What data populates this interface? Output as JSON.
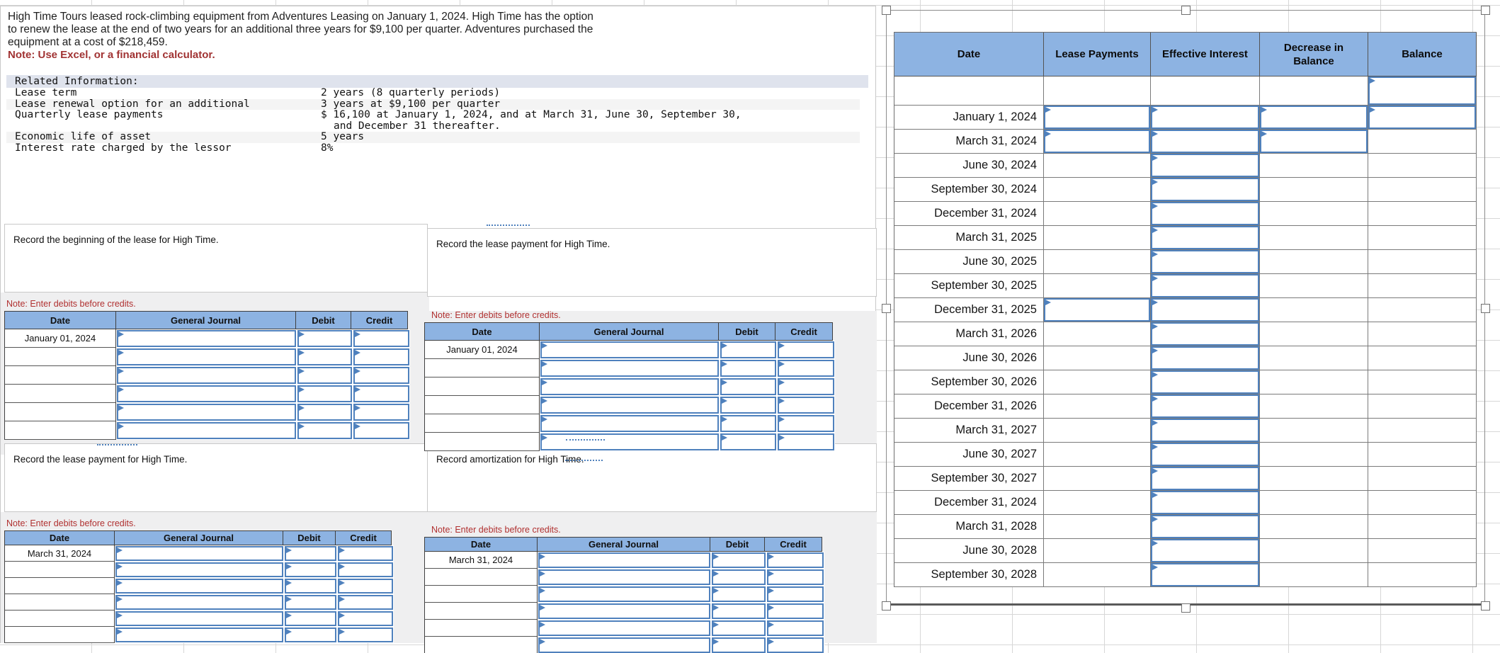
{
  "problem": {
    "lines": [
      "High Time Tours leased rock-climbing equipment from Adventures Leasing on January 1, 2024. High Time has the option",
      "to renew the lease at the end of two years for an additional three years for $9,100 per quarter. Adventures purchased the",
      "equipment at a cost of $218,459."
    ],
    "note": "Note: Use Excel, or a financial calculator."
  },
  "related_information": {
    "title": "Related Information:",
    "rows": [
      {
        "label": "Lease term",
        "value": "2 years (8 quarterly periods)",
        "value2": "",
        "shaded": false
      },
      {
        "label": "Lease renewal option for an additional",
        "value": "3 years at $9,100 per quarter",
        "value2": "",
        "shaded": true
      },
      {
        "label": "Quarterly lease payments",
        "value": "$ 16,100 at January 1, 2024, and at March 31, June 30, September 30,",
        "value2": "and December 31 thereafter.",
        "shaded": false
      },
      {
        "label": "Economic life of asset",
        "value": "5 years",
        "value2": "",
        "shaded": true
      },
      {
        "label": "Interest rate charged by the lessor",
        "value": "8%",
        "value2": "",
        "shaded": false
      }
    ]
  },
  "journals": [
    {
      "instruction": "Record the beginning of the lease for High Time.",
      "note": "Note: Enter debits before credits.",
      "headers": [
        "Date",
        "General Journal",
        "Debit",
        "Credit"
      ],
      "first_row_date": "January 01, 2024",
      "row_count": 6
    },
    {
      "instruction": "Record the lease payment for High Time.",
      "note": "Note: Enter debits before credits.",
      "headers": [
        "Date",
        "General Journal",
        "Debit",
        "Credit"
      ],
      "first_row_date": "January 01, 2024",
      "row_count": 6
    },
    {
      "instruction": "Record the lease payment for High Time.",
      "note": "Note: Enter debits before credits.",
      "headers": [
        "Date",
        "General Journal",
        "Debit",
        "Credit"
      ],
      "first_row_date": "March 31, 2024",
      "row_count": 6
    },
    {
      "instruction": "Record amortization for High Time.",
      "note": "Note: Enter debits before credits.",
      "headers": [
        "Date",
        "General Journal",
        "Debit",
        "Credit"
      ],
      "first_row_date": "March 31, 2024",
      "row_count": 6
    }
  ],
  "amortization_schedule": {
    "headers": [
      "Date",
      "Lease Payments",
      "Effective Interest",
      "Decrease in Balance",
      "Balance"
    ],
    "rows": [
      {
        "date": "",
        "inputs": [
          4
        ]
      },
      {
        "date": "January 1, 2024",
        "inputs": [
          1,
          2,
          3,
          4
        ]
      },
      {
        "date": "March 31, 2024",
        "inputs": [
          1,
          2,
          3
        ]
      },
      {
        "date": "June 30, 2024",
        "inputs": [
          2
        ]
      },
      {
        "date": "September 30, 2024",
        "inputs": [
          2
        ]
      },
      {
        "date": "December 31, 2024",
        "inputs": [
          2
        ]
      },
      {
        "date": "March 31, 2025",
        "inputs": [
          2
        ]
      },
      {
        "date": "June 30, 2025",
        "inputs": [
          2
        ]
      },
      {
        "date": "September 30, 2025",
        "inputs": [
          2
        ]
      },
      {
        "date": "December 31, 2025",
        "inputs": [
          1,
          2
        ]
      },
      {
        "date": "March 31, 2026",
        "inputs": [
          2
        ]
      },
      {
        "date": "June 30, 2026",
        "inputs": [
          2
        ]
      },
      {
        "date": "September 30, 2026",
        "inputs": [
          2
        ]
      },
      {
        "date": "December 31, 2026",
        "inputs": [
          2
        ]
      },
      {
        "date": "March 31, 2027",
        "inputs": [
          2
        ]
      },
      {
        "date": "June 30, 2027",
        "inputs": [
          2
        ]
      },
      {
        "date": "September 30, 2027",
        "inputs": [
          2
        ]
      },
      {
        "date": "December 31, 2024",
        "inputs": [
          2
        ]
      },
      {
        "date": "March 31, 2028",
        "inputs": [
          2
        ]
      },
      {
        "date": "June 30, 2028",
        "inputs": [
          2
        ]
      },
      {
        "date": "September 30, 2028",
        "inputs": [
          2
        ]
      }
    ]
  },
  "colors": {
    "header_blue": "#8db3e2",
    "input_border_blue": "#4f81bd",
    "note_red": "#b03030"
  }
}
